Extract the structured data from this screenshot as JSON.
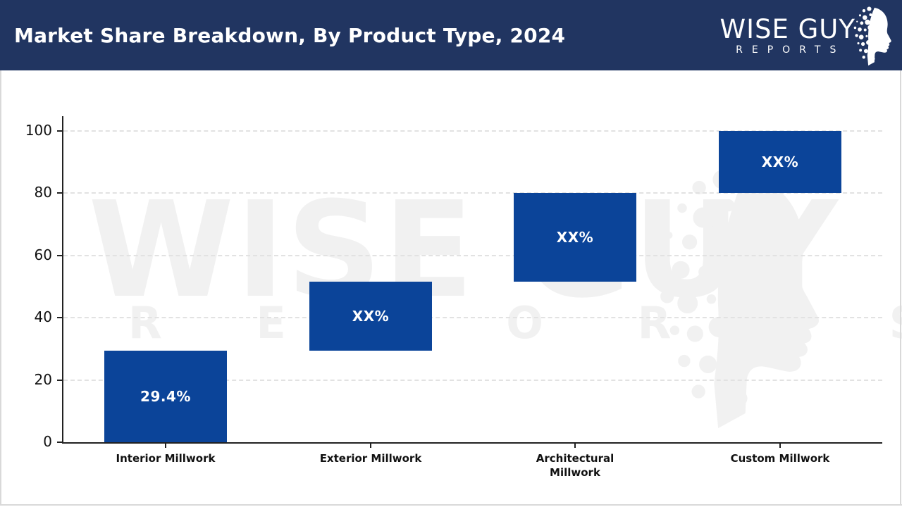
{
  "header": {
    "title": "Market Share Breakdown, By Product Type, 2024",
    "logo": {
      "line1": "WISE GUY",
      "line2": "REPORTS",
      "icon": "wise-guy-face-icon"
    }
  },
  "watermark": {
    "line1": "WISE GUY",
    "line2": "R E P O R T S",
    "icon": "wise-guy-face-icon"
  },
  "chart_data": {
    "type": "bar",
    "variant": "floating-segments-waterfall",
    "title": "Market Share Breakdown, By Product Type, 2024",
    "categories": [
      "Interior Millwork",
      "Exterior Millwork",
      "Architectural Millwork",
      "Custom Millwork"
    ],
    "segments": [
      {
        "category": "Interior Millwork",
        "start": 0,
        "end": 29.4,
        "label": "29.4%"
      },
      {
        "category": "Exterior Millwork",
        "start": 29.4,
        "end": 51.5,
        "label": "XX%"
      },
      {
        "category": "Architectural Millwork",
        "start": 51.5,
        "end": 80.0,
        "label": "XX%"
      },
      {
        "category": "Custom Millwork",
        "start": 80.0,
        "end": 100.0,
        "label": "XX%"
      }
    ],
    "xlabel": "",
    "ylabel": "",
    "ylim": [
      0,
      104
    ],
    "y_ticks": [
      0,
      20,
      40,
      60,
      80,
      100
    ],
    "grid": "horizontal-dashed",
    "legend": "none",
    "bar_color": "#0b4499",
    "value_label_color": "#ffffff"
  },
  "colors": {
    "header_bg": "#213561",
    "bar": "#0b4499",
    "grid": "#e2e2e2",
    "axis": "#212121",
    "watermark": "#f1f1f1",
    "page_border": "#d9d9d9"
  }
}
